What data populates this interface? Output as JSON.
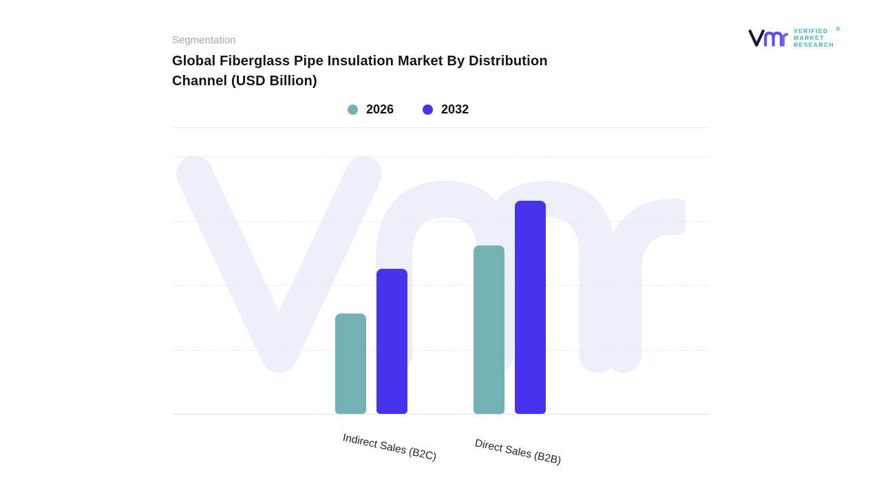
{
  "page": {
    "background": "#ffffff"
  },
  "header": {
    "eyebrow": "Segmentation",
    "title_line1": "Global Fiberglass Pipe Insulation Market By Distribution",
    "title_line2": "Channel (USD Billion)"
  },
  "logo": {
    "line1": "VERIFIED",
    "line2": "MARKET",
    "line3": "RESEARCH",
    "reg": "®",
    "text_color": "#2fb5b0",
    "mark_navy": "#12173f",
    "mark_purple": "#5e4fe8",
    "mark_purple_light": "#7668ee"
  },
  "legend": [
    {
      "label": "2026",
      "color": "#74b1b4"
    },
    {
      "label": "2032",
      "color": "#4733ee"
    }
  ],
  "chart_data": {
    "type": "bar",
    "title": "Global Fiberglass Pipe Insulation Market By Distribution Channel (USD Billion)",
    "subtitle": "Segmentation",
    "categories": [
      "Indirect  Sales (B2C)",
      "Direct Sales (B2B)"
    ],
    "series": [
      {
        "name": "2026",
        "color": "#74b1b4",
        "values": [
          47,
          79
        ]
      },
      {
        "name": "2032",
        "color": "#4733ee",
        "values": [
          68,
          100
        ]
      }
    ],
    "xlabel": "",
    "ylabel": "",
    "value_scale": "relative height, % of tallest bar (no numeric axis labels shown in chart)",
    "grid": "dashed horizontal gridlines, no y-axis tick labels",
    "legend_position": "top-center",
    "watermark_text": "vmr"
  },
  "watermark": {
    "color": "#edf0fa"
  }
}
